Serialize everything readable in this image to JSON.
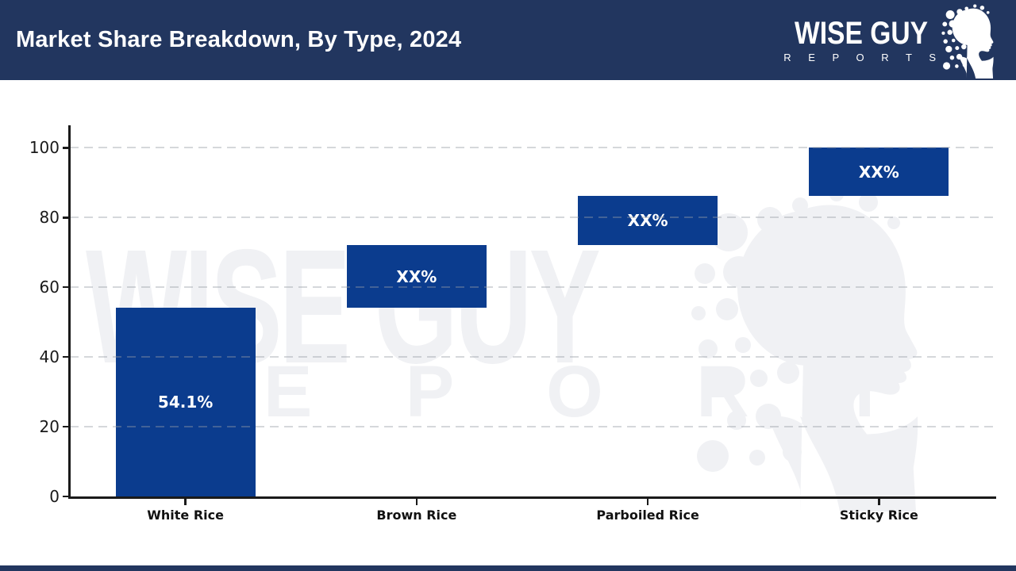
{
  "header": {
    "title": "Market Share Breakdown, By Type, 2024",
    "logo": {
      "name": "WISE GUY",
      "sub": "R E P O R T S"
    }
  },
  "watermark": {
    "line1": "WISE GUY",
    "line2": "R E P O R T S"
  },
  "chart_data": {
    "type": "bar",
    "subtype": "waterfall",
    "title": "Market Share Breakdown, By Type, 2024",
    "categories": [
      "White Rice",
      "Brown Rice",
      "Parboiled Rice",
      "Sticky Rice"
    ],
    "segments": [
      {
        "category": "White Rice",
        "start": 0,
        "end": 54.1,
        "label": "54.1%"
      },
      {
        "category": "Brown Rice",
        "start": 54.1,
        "end": 72.0,
        "label": "XX%"
      },
      {
        "category": "Parboiled Rice",
        "start": 72.0,
        "end": 86.2,
        "label": "XX%"
      },
      {
        "category": "Sticky Rice",
        "start": 86.2,
        "end": 100.0,
        "label": "XX%"
      }
    ],
    "xlabel": "",
    "ylabel": "",
    "yticks": [
      0,
      20,
      40,
      60,
      80,
      100
    ],
    "ylim": [
      0,
      106
    ],
    "grid": "horizontal-dashed",
    "legend": "none",
    "bar_color": "#0b3c8e",
    "bar_label_color": "#ffffff"
  },
  "colors": {
    "header_bg": "#22365f",
    "footer_bg": "#22365f",
    "bar": "#0b3c8e",
    "grid": "#d9dbde",
    "axis": "#1a1a1a",
    "watermark": "#f0f1f4"
  }
}
